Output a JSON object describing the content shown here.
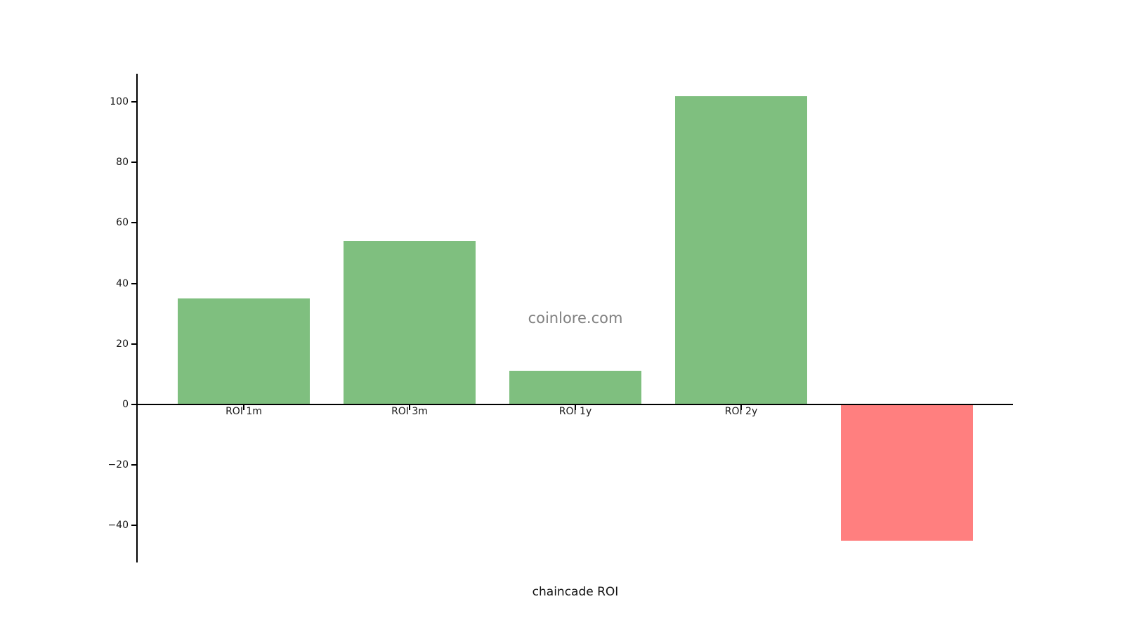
{
  "watermark": {
    "text": "coinlore.com",
    "color": "#808080"
  },
  "chart_data": {
    "type": "bar",
    "title": "chaincade ROI",
    "xlabel": "",
    "ylabel": "",
    "categories": [
      "ROI 1m",
      "ROI 3m",
      "ROI 1y",
      "ROI 2y",
      ""
    ],
    "values": [
      35,
      54,
      11,
      102,
      -45
    ],
    "bar_colors": [
      "#7fbf7f",
      "#7fbf7f",
      "#7fbf7f",
      "#7fbf7f",
      "#ff7f7f"
    ],
    "positive_color": "#7fbf7f",
    "negative_color": "#ff7f7f",
    "yticks": [
      100,
      80,
      60,
      40,
      20,
      0,
      -20,
      -40
    ],
    "ytick_labels": [
      "100",
      "80",
      "60",
      "40",
      "20",
      "0",
      "−20",
      "−40"
    ],
    "ylim": [
      -52.35,
      109.35
    ],
    "grid": false,
    "legend": null,
    "watermark": "coinlore.com"
  }
}
